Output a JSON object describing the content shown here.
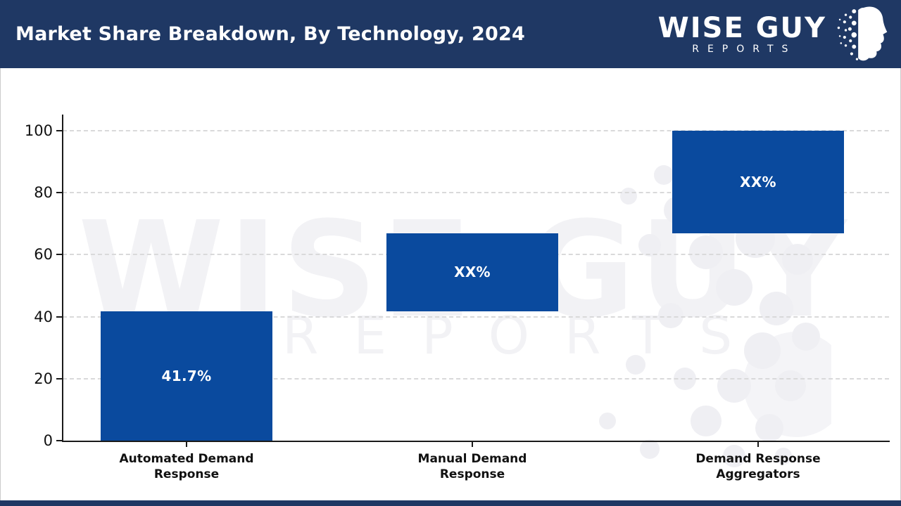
{
  "header": {
    "title": "Market Share Breakdown, By Technology, 2024",
    "logo_line1": "WISE GUY",
    "logo_line2": "REPORTS"
  },
  "watermark": {
    "line1": "WISE GUY",
    "line2": "REPORTS"
  },
  "chart_data": {
    "type": "bar",
    "variant": "floating-segment-waterfall",
    "title": "Market Share Breakdown, By Technology, 2024",
    "categories": [
      "Automated Demand\nResponse",
      "Manual Demand\nResponse",
      "Demand Response\nAggregators"
    ],
    "segments": [
      {
        "category": "Automated Demand Response",
        "start": 0,
        "end": 41.7,
        "label": "41.7%"
      },
      {
        "category": "Manual Demand Response",
        "start": 41.7,
        "end": 67,
        "label": "XX%"
      },
      {
        "category": "Demand Response Aggregators",
        "start": 67,
        "end": 100,
        "label": "XX%"
      }
    ],
    "xlabel": "",
    "ylabel": "",
    "ylim": [
      0,
      100
    ],
    "yticks": [
      0,
      20,
      40,
      60,
      80,
      100
    ],
    "grid": "horizontal-dashed",
    "legend": "none"
  },
  "colors": {
    "header_bg": "#1f3864",
    "bar": "#0a4a9e",
    "grid": "#d9d9da",
    "axis": "#1a1a1a",
    "watermark": "#f2f2f5"
  }
}
